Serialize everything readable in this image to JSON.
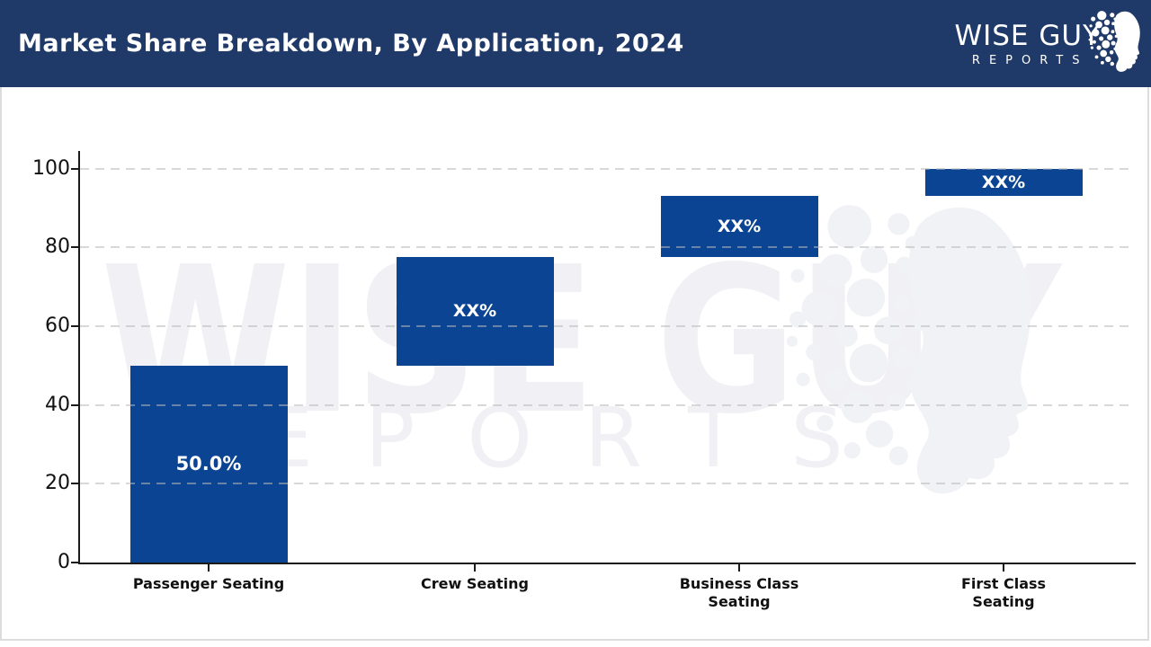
{
  "header": {
    "title": "Market Share Breakdown, By Application, 2024",
    "logo": {
      "brand": "WISE GUY",
      "sub": "REPORTS"
    }
  },
  "watermark": {
    "brand": "WISE GUY",
    "sub": "REPORTS"
  },
  "chart_data": {
    "type": "bar",
    "subtype": "waterfall",
    "title": "Market Share Breakdown, By Application, 2024",
    "unit": "%",
    "categories": [
      "Passenger Seating",
      "Crew Seating",
      "Business Class\nSeating",
      "First Class\nSeating"
    ],
    "bar_labels": [
      "50.0%",
      "XX%",
      "XX%",
      "XX%"
    ],
    "values": [
      50,
      27.5,
      15.5,
      7
    ],
    "segments": [
      {
        "category": "Passenger Seating",
        "start": 0,
        "end": 50,
        "label": "50.0%"
      },
      {
        "category": "Crew Seating",
        "start": 50,
        "end": 77.5,
        "label": "XX%"
      },
      {
        "category": "Business Class Seating",
        "start": 77.5,
        "end": 93,
        "label": "XX%"
      },
      {
        "category": "First Class Seating",
        "start": 93,
        "end": 100,
        "label": "XX%"
      }
    ],
    "yticks": [
      0,
      20,
      40,
      60,
      80,
      100
    ],
    "ylim": [
      0,
      105
    ],
    "grid": {
      "axis": "y",
      "style": "dashed"
    },
    "legend": null,
    "colors": {
      "bar": "#0B4493",
      "header_bg": "#1F3A68",
      "grid": "#D9D9D9",
      "axis": "#1A1A1A",
      "bar_label": "#FFFFFF",
      "watermark": "#F1F1F5"
    }
  }
}
